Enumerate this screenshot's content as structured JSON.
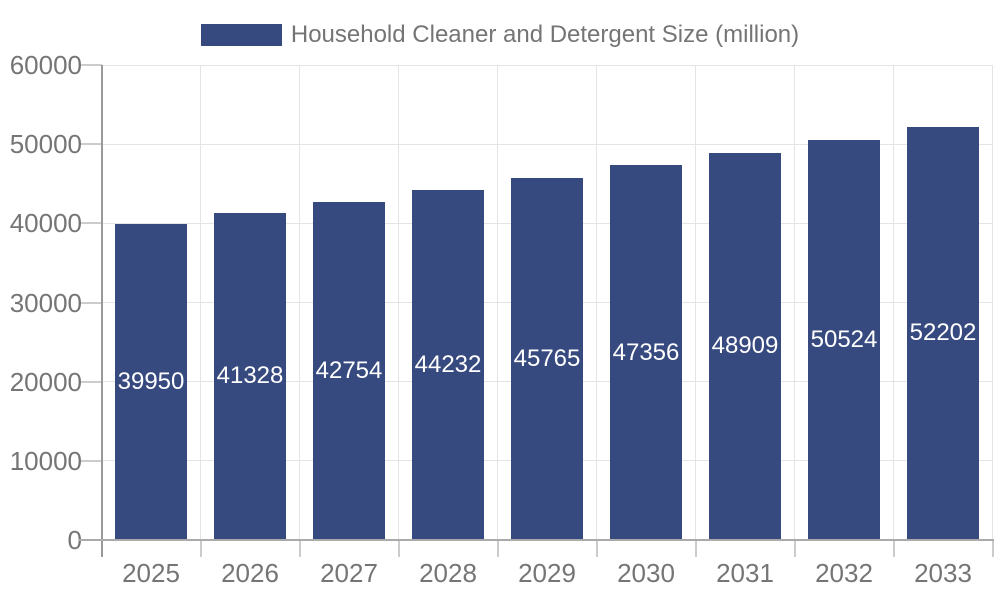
{
  "legend": {
    "label": "Household Cleaner and Detergent Size (million)"
  },
  "chart_data": {
    "type": "bar",
    "title": "Household Cleaner and Detergent Size (million)",
    "series_name": "Household Cleaner and Detergent Size (million)",
    "categories": [
      "2025",
      "2026",
      "2027",
      "2028",
      "2029",
      "2030",
      "2031",
      "2032",
      "2033"
    ],
    "values": [
      39950,
      41328,
      42754,
      44232,
      45765,
      47356,
      48909,
      50524,
      52202
    ],
    "xlabel": "",
    "ylabel": "",
    "ylim": [
      0,
      60000
    ],
    "yticks": [
      0,
      10000,
      20000,
      30000,
      40000,
      50000,
      60000
    ],
    "grid": true,
    "legend_position": "top",
    "value_labels": "inside-center",
    "colors": {
      "bar": "#374a80",
      "bar_label": "#ffffff",
      "axis_text": "#757575",
      "legend_text": "#757575",
      "gridline": "#e4e4e4",
      "axis_line": "#999999",
      "background": "#ffffff"
    }
  }
}
